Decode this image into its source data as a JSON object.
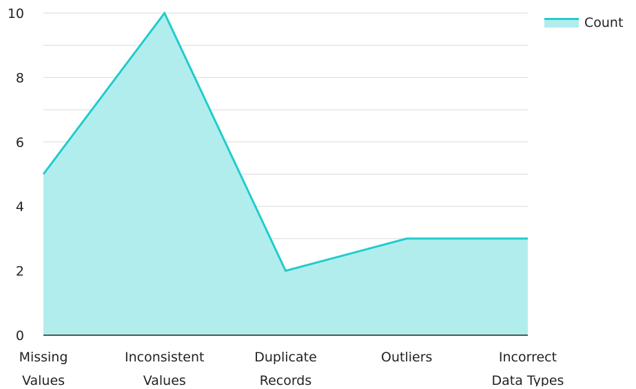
{
  "chart_data": {
    "type": "area",
    "categories": [
      [
        "Missing",
        "Values"
      ],
      [
        "Inconsistent",
        "Values"
      ],
      [
        "Duplicate",
        "Records"
      ],
      [
        "Outliers"
      ],
      [
        "Incorrect",
        "Data Types"
      ]
    ],
    "series": [
      {
        "name": "Count",
        "values": [
          5,
          10,
          2,
          3,
          3
        ]
      }
    ],
    "ylim": [
      0,
      10
    ],
    "yticks": [
      0,
      2,
      4,
      6,
      8,
      10
    ],
    "xlabel": "",
    "ylabel": "",
    "grid": true,
    "legend_position": "top-right",
    "colors": {
      "line": "#1fcccc",
      "area": "#b2eded",
      "grid": "#d9d9d9",
      "axis": "#222222"
    }
  },
  "legend": {
    "label": "Count"
  }
}
